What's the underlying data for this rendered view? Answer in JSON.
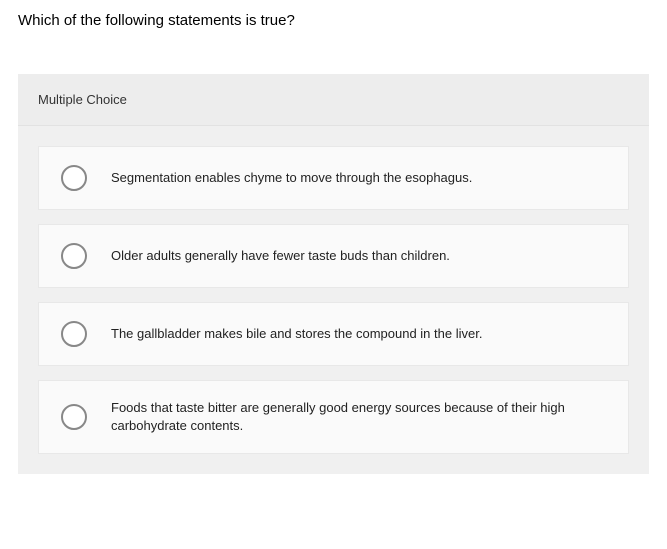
{
  "question": {
    "prompt": "Which of the following statements is true?",
    "section_label": "Multiple Choice"
  },
  "options": [
    {
      "text": "Segmentation enables chyme to move through the esophagus."
    },
    {
      "text": "Older adults generally have fewer taste buds than children."
    },
    {
      "text": "The gallbladder makes bile and stores the compound in the liver."
    },
    {
      "text": "Foods that taste bitter are generally good energy sources because of their high carbohydrate contents."
    }
  ],
  "colors": {
    "page_background": "#ffffff",
    "container_background": "#f0f0f0",
    "header_background": "#ededed",
    "option_background": "#fafafa",
    "option_border": "#e8e8e8",
    "radio_border": "#888888",
    "text_primary": "#000000",
    "text_option": "#222222"
  }
}
